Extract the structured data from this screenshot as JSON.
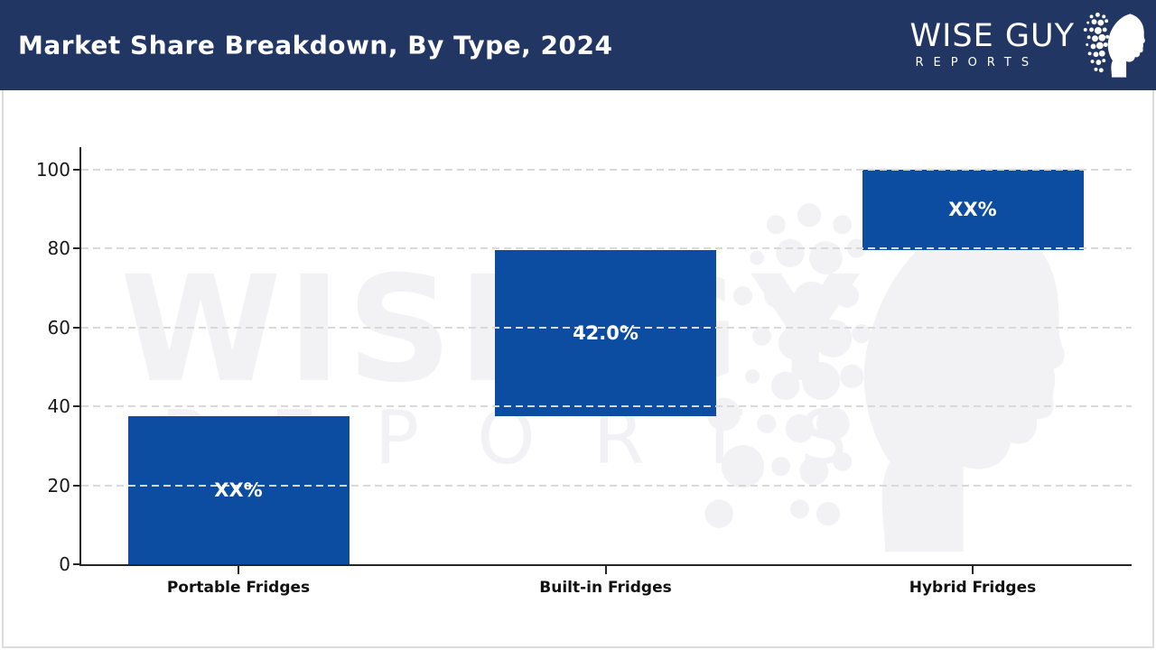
{
  "header": {
    "title": "Market Share Breakdown, By Type, 2024",
    "logo": {
      "name": "WISE GUY",
      "tagline": "REPORTS"
    }
  },
  "watermark": {
    "word_left": "WISE G",
    "word_right": "Y",
    "tagline": "REPORTS"
  },
  "chart_data": {
    "type": "bar",
    "subtype": "floating-waterfall",
    "title": "Market Share Breakdown, By Type, 2024",
    "categories": [
      "Portable Fridges",
      "Built-in Fridges",
      "Hybrid Fridges"
    ],
    "segments": [
      {
        "category": "Portable Fridges",
        "start": 0,
        "end": 37.5,
        "label": "XX%"
      },
      {
        "category": "Built-in Fridges",
        "start": 37.5,
        "end": 79.5,
        "label": "42.0%"
      },
      {
        "category": "Hybrid Fridges",
        "start": 79.5,
        "end": 100,
        "label": "XX%"
      }
    ],
    "yticks": [
      0,
      20,
      40,
      60,
      80,
      100
    ],
    "ylim": [
      0,
      105
    ],
    "xlabel": "",
    "ylabel": "",
    "legend": false,
    "grid": "horizontal-dashed",
    "bar_color": "#0d4da1",
    "accent_navy": "#213663",
    "gridline_color": "#d9d9d9",
    "value_label_color": "#ffffff"
  }
}
